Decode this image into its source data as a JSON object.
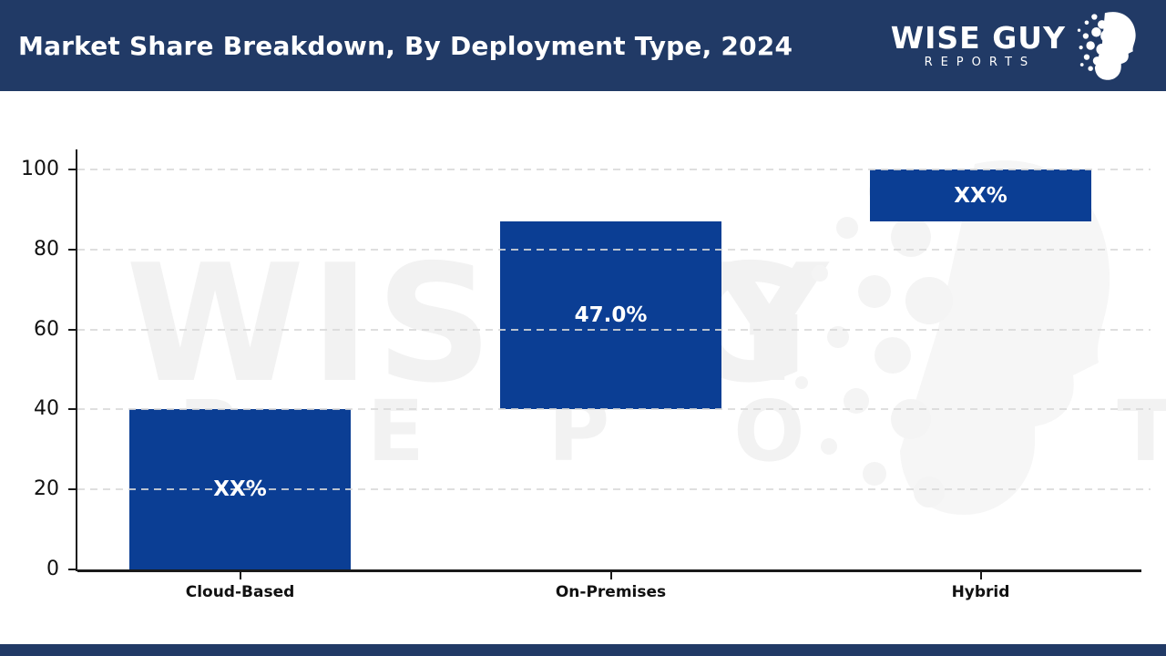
{
  "header": {
    "title": "Market Share Breakdown, By Deployment Type, 2024",
    "logo": {
      "line1": "WISE GUY",
      "line2": "REPORTS"
    }
  },
  "watermark": {
    "part1": "WISE G",
    "part2": "Y",
    "part3": "R E P O R T S"
  },
  "colors": {
    "header_bg": "#213A66",
    "footer_bg": "#213A66",
    "bar": "#0B3E94",
    "bar_label": "#FFFFFF",
    "grid": "#D9D9D9",
    "axis": "#1A1A1A",
    "watermark": "#F2F2F2"
  },
  "chart_data": {
    "type": "bar",
    "subtype": "floating-waterfall",
    "title": "Market Share Breakdown, By Deployment Type, 2024",
    "categories": [
      "Cloud-Based",
      "On-Premises",
      "Hybrid"
    ],
    "segments": [
      {
        "category": "Cloud-Based",
        "start": 0,
        "end": 40,
        "label": "XX%"
      },
      {
        "category": "On-Premises",
        "start": 40,
        "end": 87,
        "label": "47.0%"
      },
      {
        "category": "Hybrid",
        "start": 87,
        "end": 100,
        "label": "XX%"
      }
    ],
    "xlabel": "",
    "ylabel": "",
    "ylim": [
      0,
      105
    ],
    "yticks": [
      0,
      20,
      40,
      60,
      80,
      100
    ],
    "grid": "horizontal-dashed",
    "legend": "none"
  }
}
